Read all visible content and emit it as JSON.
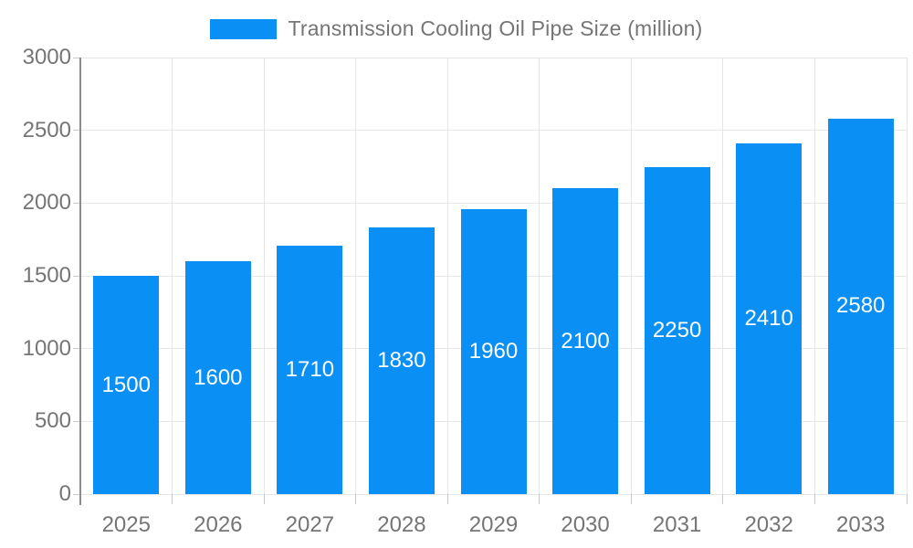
{
  "legend": {
    "label": "Transmission Cooling Oil Pipe Size (million)"
  },
  "colors": {
    "bar": "#0a8ff5",
    "bar_label": "#ffffff",
    "axis_label": "#757575",
    "grid": "#e6e6e6",
    "axis_line": "#8c8c8c",
    "tick": "#c9c9c9",
    "background": "#ffffff"
  },
  "chart_data": {
    "type": "bar",
    "title": "Transmission Cooling Oil Pipe Size (million)",
    "categories": [
      "2025",
      "2026",
      "2027",
      "2028",
      "2029",
      "2030",
      "2031",
      "2032",
      "2033"
    ],
    "series": [
      {
        "name": "Transmission Cooling Oil Pipe Size (million)",
        "values": [
          1500,
          1600,
          1710,
          1830,
          1960,
          2100,
          2250,
          2410,
          2580
        ]
      }
    ],
    "xlabel": "",
    "ylabel": "",
    "ylim": [
      0,
      3000
    ],
    "yticks": [
      0,
      500,
      1000,
      1500,
      2000,
      2500,
      3000
    ],
    "grid": true,
    "legend_position": "top",
    "bar_value_labels": true
  }
}
